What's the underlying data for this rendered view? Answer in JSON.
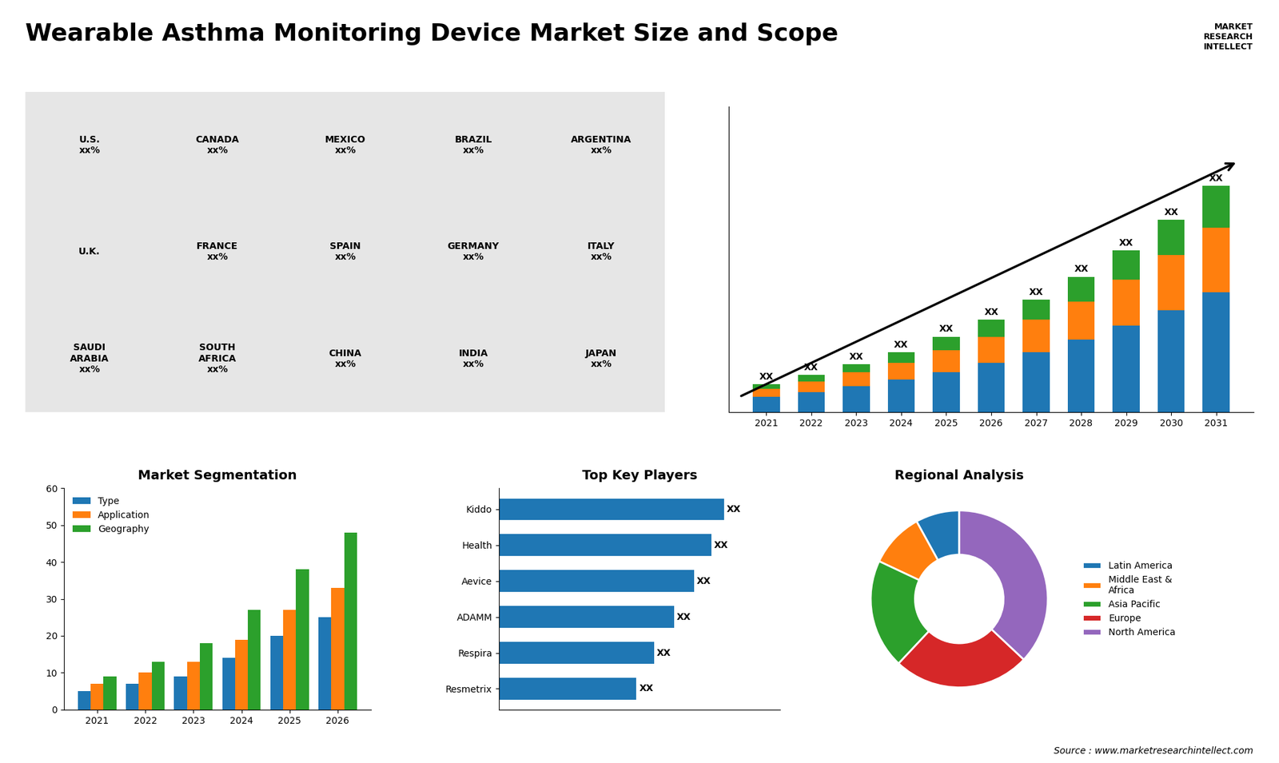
{
  "title": "Wearable Asthma Monitoring Device Market Size and Scope",
  "annotations": [
    "MARKET\nRESEARCH\nINTELLECT",
    "Source : www.marketresearchintellect.com"
  ],
  "chart_data": [
    {
      "type": "map",
      "annotations": [
        "U.S.\nxx%",
        "CANADA\nxx%",
        "MEXICO\nxx%",
        "BRAZIL\nxx%",
        "ARGENTINA\nxx%",
        "U.K.",
        "FRANCE\nxx%",
        "SPAIN\nxx%",
        "GERMANY\nxx%",
        "ITALY\nxx%",
        "SAUDI\nARABIA\nxx%",
        "SOUTH\nAFRICA\nxx%",
        "CHINA\nxx%",
        "INDIA\nxx%",
        "JAPAN\nxx%"
      ]
    },
    {
      "type": "bar",
      "stacked": true,
      "categories": [
        "2021",
        "2022",
        "2023",
        "2024",
        "2025",
        "2026",
        "2027",
        "2028",
        "2029",
        "2030",
        "2031"
      ],
      "series": [
        {
          "values": [
            1.0,
            1.3,
            1.7,
            2.1,
            2.6,
            3.2,
            3.9,
            4.7,
            5.6,
            6.6,
            7.8
          ]
        },
        {
          "values": [
            0.5,
            0.7,
            0.9,
            1.1,
            1.4,
            1.7,
            2.1,
            2.5,
            3.0,
            3.6,
            4.2
          ]
        },
        {
          "values": [
            0.3,
            0.4,
            0.5,
            0.7,
            0.9,
            1.1,
            1.3,
            1.6,
            1.9,
            2.3,
            2.7
          ]
        }
      ],
      "ylim": [
        0,
        19.845
      ],
      "yticks": [],
      "tick_labels": "x",
      "data_labels": true,
      "value_labels": [
        "XX",
        "XX",
        "XX",
        "XX",
        "XX",
        "XX",
        "XX",
        "XX",
        "XX",
        "XX",
        "XX"
      ]
    },
    {
      "type": "bar",
      "title": "Market Segmentation",
      "categories": [
        "2021",
        "2022",
        "2023",
        "2024",
        "2025",
        "2026"
      ],
      "series": [
        {
          "name": "Type",
          "values": [
            5,
            7,
            9,
            14,
            20,
            25
          ]
        },
        {
          "name": "Application",
          "values": [
            7,
            10,
            13,
            19,
            27,
            33
          ]
        },
        {
          "name": "Geography",
          "values": [
            9,
            13,
            18,
            27,
            38,
            48
          ]
        }
      ],
      "ylim": [
        0,
        60
      ],
      "yticks": [
        0,
        10,
        20,
        30,
        40,
        50,
        60
      ],
      "legend": "upper left"
    },
    {
      "type": "bar",
      "orientation": "horizontal",
      "title": "Top Key Players",
      "categories": [
        "Kiddo",
        "Health",
        "Aevice",
        "ADAMM",
        "Respira",
        "Resmetrix"
      ],
      "values": [
        9.0,
        8.5,
        7.8,
        7.0,
        6.2,
        5.5
      ],
      "xlim": [
        0,
        11.25
      ],
      "xticks": [],
      "tick_labels": "y",
      "data_labels": true,
      "value_labels": [
        "XX",
        "XX",
        "XX",
        "XX",
        "XX",
        "XX"
      ]
    },
    {
      "type": "pie",
      "title": "Regional Analysis",
      "categories": [
        "Latin America",
        "Middle East &\nAfrica",
        "Asia Pacific",
        "Europe",
        "North America"
      ],
      "values": [
        8,
        10,
        20,
        25,
        37
      ],
      "legend": "center left"
    }
  ]
}
